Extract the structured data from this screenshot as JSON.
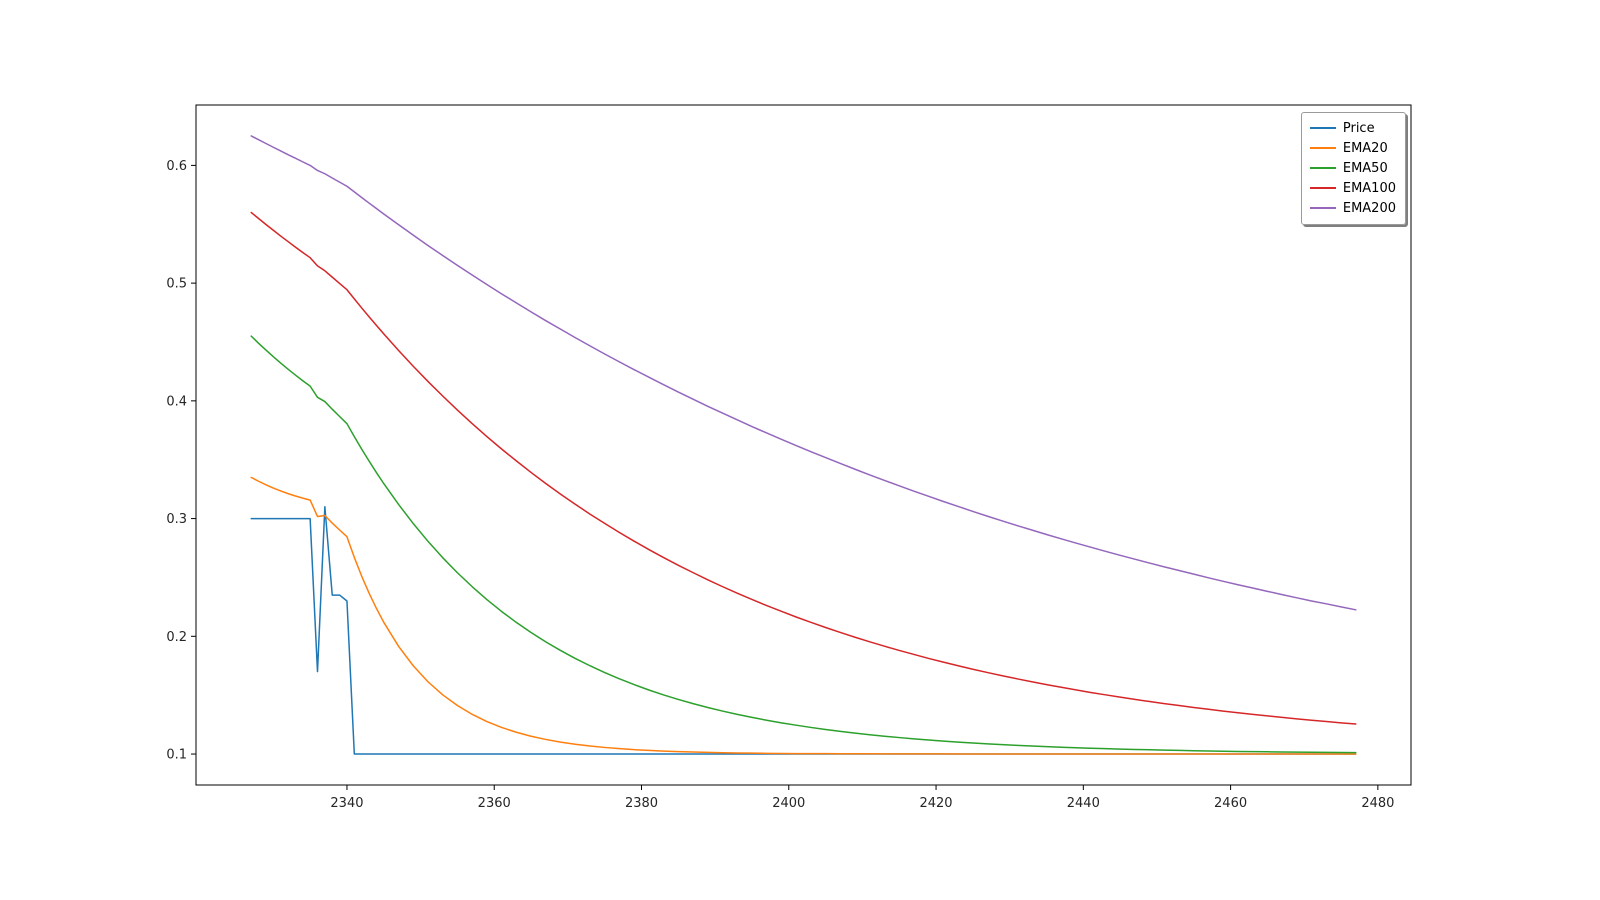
{
  "chart_data": {
    "type": "line",
    "title": "",
    "xlabel": "",
    "ylabel": "",
    "grid": false,
    "line_width": 1.5,
    "axes_color": "#000000",
    "xlim": [
      2319.5,
      2484.5
    ],
    "ylim": [
      0.0737,
      0.6513
    ],
    "xticks": [
      2340,
      2360,
      2380,
      2400,
      2420,
      2440,
      2460,
      2480
    ],
    "yticks": [
      0.1,
      0.2,
      0.3,
      0.4,
      0.5,
      0.6
    ],
    "ytick_labels": [
      "0.1",
      "0.2",
      "0.3",
      "0.4",
      "0.5",
      "0.6"
    ],
    "legend": {
      "position": "upper right",
      "entries": [
        "Price",
        "EMA20",
        "EMA50",
        "EMA100",
        "EMA200"
      ]
    },
    "x": [
      2327,
      2328,
      2329,
      2330,
      2331,
      2332,
      2333,
      2334,
      2335,
      2336,
      2337,
      2338,
      2339,
      2340,
      2341,
      2342,
      2343,
      2344,
      2345,
      2347,
      2349,
      2351,
      2353,
      2355,
      2357,
      2359,
      2361,
      2363,
      2365,
      2367,
      2369,
      2371,
      2373,
      2375,
      2377,
      2379,
      2381,
      2383,
      2385,
      2387,
      2389,
      2391,
      2393,
      2395,
      2397,
      2399,
      2401,
      2403,
      2405,
      2407,
      2409,
      2411,
      2413,
      2415,
      2417,
      2419,
      2421,
      2423,
      2425,
      2427,
      2429,
      2431,
      2433,
      2435,
      2437,
      2439,
      2441,
      2443,
      2445,
      2447,
      2449,
      2451,
      2453,
      2455,
      2457,
      2459,
      2461,
      2463,
      2465,
      2467,
      2469,
      2471,
      2473,
      2475,
      2477
    ],
    "series": [
      {
        "name": "Price",
        "color": "#1f77b4",
        "values": [
          0.3,
          0.3,
          0.3,
          0.3,
          0.3,
          0.3,
          0.3,
          0.3,
          0.3,
          0.17,
          0.31,
          0.235,
          0.235,
          0.23,
          0.1,
          0.1,
          0.1,
          0.1,
          0.1,
          0.1,
          0.1,
          0.1,
          0.1,
          0.1,
          0.1,
          0.1,
          0.1,
          0.1,
          0.1,
          0.1,
          0.1,
          0.1,
          0.1,
          0.1,
          0.1,
          0.1,
          0.1,
          0.1,
          0.1,
          0.1,
          0.1,
          0.1,
          0.1,
          0.1,
          0.1,
          0.1,
          0.1,
          0.1,
          0.1,
          0.1,
          0.1,
          0.1,
          0.1,
          0.1,
          0.1,
          0.1,
          0.1,
          0.1,
          0.1,
          0.1,
          0.1,
          0.1,
          0.1,
          0.1,
          0.1,
          0.1,
          0.1,
          0.1,
          0.1,
          0.1,
          0.1,
          0.1,
          0.1,
          0.1,
          0.1,
          0.1,
          0.1,
          0.1,
          0.1,
          0.1,
          0.1,
          0.1,
          0.1,
          0.1,
          0.1
        ]
      },
      {
        "name": "EMA20",
        "color": "#ff7f0e",
        "values": [
          0.335,
          0.3317,
          0.3287,
          0.3259,
          0.3235,
          0.3212,
          0.3192,
          0.3174,
          0.3157,
          0.3018,
          0.3026,
          0.2962,
          0.2903,
          0.2846,
          0.267,
          0.2511,
          0.2367,
          0.2237,
          0.2119,
          0.1916,
          0.175,
          0.1614,
          0.1503,
          0.1412,
          0.1337,
          0.1276,
          0.1226,
          0.1185,
          0.1151,
          0.1124,
          0.1101,
          0.1083,
          0.1068,
          0.1056,
          0.1046,
          0.1037,
          0.1031,
          0.1025,
          0.102,
          0.1017,
          0.1014,
          0.1011,
          0.1009,
          0.1008,
          0.1006,
          0.1005,
          0.1004,
          0.1003,
          0.1003,
          0.1002,
          0.1002,
          0.1002,
          0.1001,
          0.1001,
          0.1001,
          0.1001,
          0.1001,
          0.1,
          0.1,
          0.1,
          0.1,
          0.1,
          0.1,
          0.1,
          0.1,
          0.1,
          0.1,
          0.1,
          0.1,
          0.1,
          0.1,
          0.1,
          0.1,
          0.1,
          0.1,
          0.1,
          0.1,
          0.1,
          0.1,
          0.1,
          0.1,
          0.1,
          0.1,
          0.1,
          0.1
        ]
      },
      {
        "name": "EMA50",
        "color": "#2ca02c",
        "values": [
          0.455,
          0.4489,
          0.4431,
          0.4375,
          0.4321,
          0.4269,
          0.4219,
          0.4171,
          0.4125,
          0.403,
          0.3994,
          0.3929,
          0.3867,
          0.3806,
          0.3696,
          0.359,
          0.3489,
          0.3391,
          0.3297,
          0.3121,
          0.2958,
          0.2807,
          0.2668,
          0.254,
          0.2422,
          0.2312,
          0.2211,
          0.2118,
          0.2032,
          0.1953,
          0.188,
          0.1812,
          0.175,
          0.1692,
          0.1639,
          0.159,
          0.1544,
          0.1502,
          0.1464,
          0.1428,
          0.1395,
          0.1365,
          0.1337,
          0.1311,
          0.1287,
          0.1265,
          0.1245,
          0.1226,
          0.1208,
          0.1192,
          0.1178,
          0.1164,
          0.1151,
          0.114,
          0.1129,
          0.1119,
          0.111,
          0.1101,
          0.1094,
          0.1086,
          0.108,
          0.1074,
          0.1068,
          0.1063,
          0.1058,
          0.1053,
          0.1049,
          0.1046,
          0.1042,
          0.1039,
          0.1036,
          0.1033,
          0.1031,
          0.1028,
          0.1026,
          0.1024,
          0.1022,
          0.102,
          0.1019,
          0.1017,
          0.1016,
          0.1015,
          0.1014,
          0.1013,
          0.1012
        ]
      },
      {
        "name": "EMA100",
        "color": "#d62728",
        "values": [
          0.56,
          0.5549,
          0.5498,
          0.5449,
          0.54,
          0.5353,
          0.5306,
          0.526,
          0.5216,
          0.5146,
          0.5105,
          0.5051,
          0.4997,
          0.4944,
          0.4866,
          0.4789,
          0.4714,
          0.4641,
          0.4569,
          0.4429,
          0.4294,
          0.4165,
          0.4041,
          0.3922,
          0.3807,
          0.3697,
          0.3591,
          0.349,
          0.3392,
          0.3298,
          0.3208,
          0.3122,
          0.3038,
          0.2959,
          0.2882,
          0.2808,
          0.2737,
          0.2669,
          0.2603,
          0.2541,
          0.248,
          0.2422,
          0.2366,
          0.2313,
          0.2261,
          0.2212,
          0.2164,
          0.2119,
          0.2075,
          0.2033,
          0.1992,
          0.1953,
          0.1916,
          0.188,
          0.1846,
          0.1812,
          0.1781,
          0.175,
          0.172,
          0.1692,
          0.1665,
          0.1639,
          0.1614,
          0.159,
          0.1567,
          0.1545,
          0.1523,
          0.1503,
          0.1483,
          0.1464,
          0.1446,
          0.1428,
          0.1412,
          0.1395,
          0.138,
          0.1365,
          0.1351,
          0.1337,
          0.1324,
          0.1311,
          0.1299,
          0.1287,
          0.1276,
          0.1265,
          0.1255
        ]
      },
      {
        "name": "EMA200",
        "color": "#9467bd",
        "values": [
          0.625,
          0.6218,
          0.6186,
          0.6154,
          0.6123,
          0.6091,
          0.6061,
          0.603,
          0.6,
          0.5957,
          0.5929,
          0.5893,
          0.5858,
          0.5823,
          0.5775,
          0.5727,
          0.568,
          0.5634,
          0.5587,
          0.5497,
          0.5408,
          0.532,
          0.5235,
          0.5151,
          0.5069,
          0.4988,
          0.4909,
          0.4832,
          0.4756,
          0.4681,
          0.4609,
          0.4537,
          0.4467,
          0.4398,
          0.4331,
          0.4265,
          0.4201,
          0.4137,
          0.4075,
          0.4014,
          0.3954,
          0.3896,
          0.3839,
          0.3782,
          0.3727,
          0.3673,
          0.362,
          0.3568,
          0.3518,
          0.3468,
          0.3419,
          0.3371,
          0.3324,
          0.3278,
          0.3233,
          0.3189,
          0.3145,
          0.3103,
          0.3061,
          0.302,
          0.298,
          0.2941,
          0.2903,
          0.2865,
          0.2828,
          0.2792,
          0.2757,
          0.2722,
          0.2688,
          0.2655,
          0.2622,
          0.259,
          0.2559,
          0.2528,
          0.2497,
          0.2467,
          0.2438,
          0.241,
          0.2382,
          0.2354,
          0.2327,
          0.23,
          0.2276,
          0.225,
          0.2225
        ]
      }
    ]
  }
}
